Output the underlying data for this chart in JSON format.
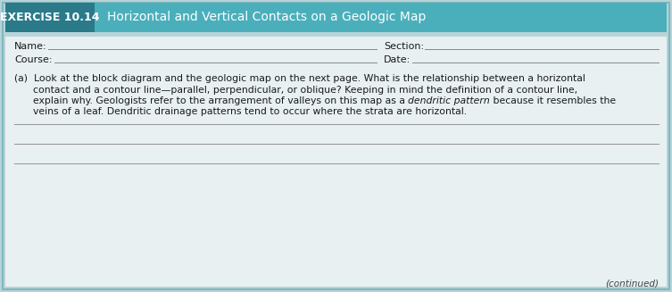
{
  "header_bg": "#4aafbb",
  "header_label_bg": "#2a7a8a",
  "header_label_text": "EXERCISE 10.14",
  "header_title": "Horizontal and Vertical Contacts on a Geologic Map",
  "header_label_color": "#ffffff",
  "header_title_color": "#ffffff",
  "outer_bg": "#b8d4d8",
  "inner_bg": "#e8f0f2",
  "name_label": "Name:",
  "course_label": "Course:",
  "section_label": "Section:",
  "date_label": "Date:",
  "line1": "(a)  Look at the block diagram and the geologic map on the next page. What is the relationship between a horizontal",
  "line2": "      contact and a contour line—parallel, perpendicular, or oblique? Keeping in mind the definition of a contour line,",
  "line3_pre": "      explain why. Geologists refer to the arrangement of valleys on this map as a ",
  "line3_italic": "dendritic pattern",
  "line3_post": " because it resembles the",
  "line4": "      veins of a leaf. Dendritic drainage patterns tend to occur where the strata are horizontal.",
  "continued_text": "(continued)",
  "n_answer_lines": 3,
  "text_color": "#1a1a1a",
  "line_color": "#888888"
}
